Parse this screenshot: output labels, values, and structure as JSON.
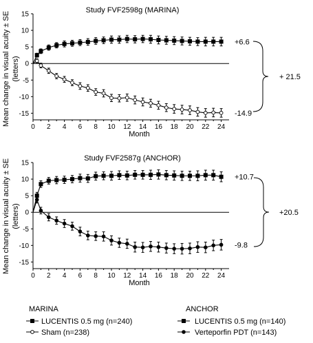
{
  "chart_data": [
    {
      "type": "line",
      "title": "Study FVF2598g (MARINA)",
      "xlabel": "Month",
      "ylabel": "Mean change in visual acuity ± SE (letters)",
      "xlim": [
        0,
        25
      ],
      "ylim": [
        -17,
        15
      ],
      "xticks": [
        "0",
        "2",
        "4",
        "6",
        "8",
        "10",
        "12",
        "14",
        "16",
        "18",
        "20",
        "22",
        "24"
      ],
      "yticks": [
        "15",
        "10",
        "5",
        "0",
        "-5",
        "-10",
        "-15"
      ],
      "grid": false,
      "series": [
        {
          "name": "LUCENTIS 0.5 mg (n=240)",
          "marker": "square-filled",
          "x": [
            0,
            0.5,
            1,
            2,
            3,
            4,
            5,
            6,
            7,
            8,
            9,
            10,
            11,
            12,
            13,
            14,
            15,
            16,
            17,
            18,
            19,
            20,
            21,
            22,
            23,
            24
          ],
          "y": [
            0,
            2.5,
            3.7,
            4.8,
            5.5,
            5.9,
            6.1,
            6.3,
            6.5,
            6.8,
            7.0,
            7.2,
            7.2,
            7.4,
            7.3,
            7.4,
            7.3,
            7.1,
            7.0,
            6.9,
            6.8,
            6.7,
            6.6,
            6.6,
            6.6,
            6.6
          ],
          "se": [
            0,
            0.6,
            0.7,
            0.8,
            0.8,
            0.9,
            0.9,
            0.9,
            1.0,
            1.0,
            1.0,
            1.1,
            1.1,
            1.1,
            1.1,
            1.1,
            1.2,
            1.2,
            1.2,
            1.2,
            1.2,
            1.2,
            1.2,
            1.3,
            1.3,
            1.3
          ]
        },
        {
          "name": "Sham (n=238)",
          "marker": "circle-open",
          "x": [
            0,
            0.5,
            1,
            2,
            3,
            4,
            5,
            6,
            7,
            8,
            9,
            10,
            11,
            12,
            13,
            14,
            15,
            16,
            17,
            18,
            19,
            20,
            21,
            22,
            23,
            24
          ],
          "y": [
            0,
            0.8,
            -0.6,
            -2.2,
            -3.8,
            -4.8,
            -5.8,
            -6.8,
            -7.4,
            -8.6,
            -9.0,
            -10.4,
            -10.5,
            -10.3,
            -11.0,
            -11.6,
            -12.0,
            -12.6,
            -13.3,
            -13.7,
            -13.9,
            -14.1,
            -14.6,
            -14.9,
            -14.8,
            -14.9
          ],
          "se": [
            0,
            0.6,
            0.7,
            0.8,
            0.8,
            0.9,
            0.9,
            1.0,
            1.0,
            1.0,
            1.1,
            1.1,
            1.1,
            1.1,
            1.2,
            1.2,
            1.2,
            1.2,
            1.2,
            1.3,
            1.3,
            1.3,
            1.3,
            1.3,
            1.3,
            1.3
          ]
        }
      ],
      "end_labels": [
        "+6.6",
        "-14.9"
      ],
      "difference_label": "+ 21.5"
    },
    {
      "type": "line",
      "title": "Study FVF2587g (ANCHOR)",
      "xlabel": "Month",
      "ylabel": "Mean change in visual acuity ± SE (letters)",
      "xlim": [
        0,
        25
      ],
      "ylim": [
        -17,
        15
      ],
      "xticks": [
        "0",
        "2",
        "4",
        "6",
        "8",
        "10",
        "12",
        "14",
        "16",
        "18",
        "20",
        "22",
        "24"
      ],
      "yticks": [
        "15",
        "10",
        "5",
        "0",
        "-5",
        "-10",
        "-15"
      ],
      "grid": false,
      "series": [
        {
          "name": "LUCENTIS 0.5 mg (n=140)",
          "marker": "square-filled",
          "x": [
            0,
            0.5,
            1,
            2,
            3,
            4,
            5,
            6,
            7,
            8,
            9,
            10,
            11,
            12,
            13,
            14,
            15,
            16,
            17,
            18,
            19,
            20,
            21,
            22,
            23,
            24
          ],
          "y": [
            0,
            5.0,
            8.5,
            9.5,
            9.7,
            9.8,
            10.0,
            10.3,
            10.2,
            10.9,
            11.0,
            11.0,
            11.2,
            11.1,
            11.3,
            11.3,
            11.3,
            11.4,
            11.2,
            11.1,
            11.0,
            11.0,
            11.0,
            11.2,
            11.2,
            10.7
          ],
          "se": [
            0,
            1.0,
            1.0,
            1.0,
            1.1,
            1.1,
            1.1,
            1.2,
            1.2,
            1.2,
            1.2,
            1.3,
            1.3,
            1.3,
            1.3,
            1.3,
            1.4,
            1.4,
            1.4,
            1.4,
            1.4,
            1.4,
            1.5,
            1.5,
            1.5,
            1.5
          ]
        },
        {
          "name": "Verteporfin PDT (n=143)",
          "marker": "circle-filled",
          "x": [
            0,
            0.5,
            1,
            2,
            3,
            4,
            5,
            6,
            7,
            8,
            9,
            10,
            11,
            12,
            13,
            14,
            15,
            16,
            17,
            18,
            19,
            20,
            21,
            22,
            23,
            24
          ],
          "y": [
            0,
            3.8,
            0.5,
            -1.5,
            -2.5,
            -3.4,
            -4.2,
            -5.8,
            -7.0,
            -7.2,
            -7.3,
            -8.5,
            -9.2,
            -9.5,
            -10.5,
            -10.6,
            -10.3,
            -10.5,
            -10.8,
            -11.0,
            -11.0,
            -10.9,
            -10.5,
            -10.6,
            -10.0,
            -9.8
          ],
          "se": [
            0,
            1.0,
            1.0,
            1.1,
            1.1,
            1.2,
            1.2,
            1.3,
            1.3,
            1.3,
            1.4,
            1.4,
            1.4,
            1.4,
            1.5,
            1.5,
            1.5,
            1.5,
            1.5,
            1.5,
            1.6,
            1.6,
            1.6,
            1.6,
            1.6,
            1.6
          ]
        }
      ],
      "end_labels": [
        "+10.7",
        "-9.8"
      ],
      "difference_label": "+20.5"
    }
  ],
  "legend": [
    {
      "heading": "MARINA",
      "entries": [
        "LUCENTIS 0.5 mg (n=240)",
        "Sham (n=238)"
      ]
    },
    {
      "heading": "ANCHOR",
      "entries": [
        "LUCENTIS 0.5 mg (n=140)",
        "Verteporfin PDT (n=143)"
      ]
    }
  ]
}
